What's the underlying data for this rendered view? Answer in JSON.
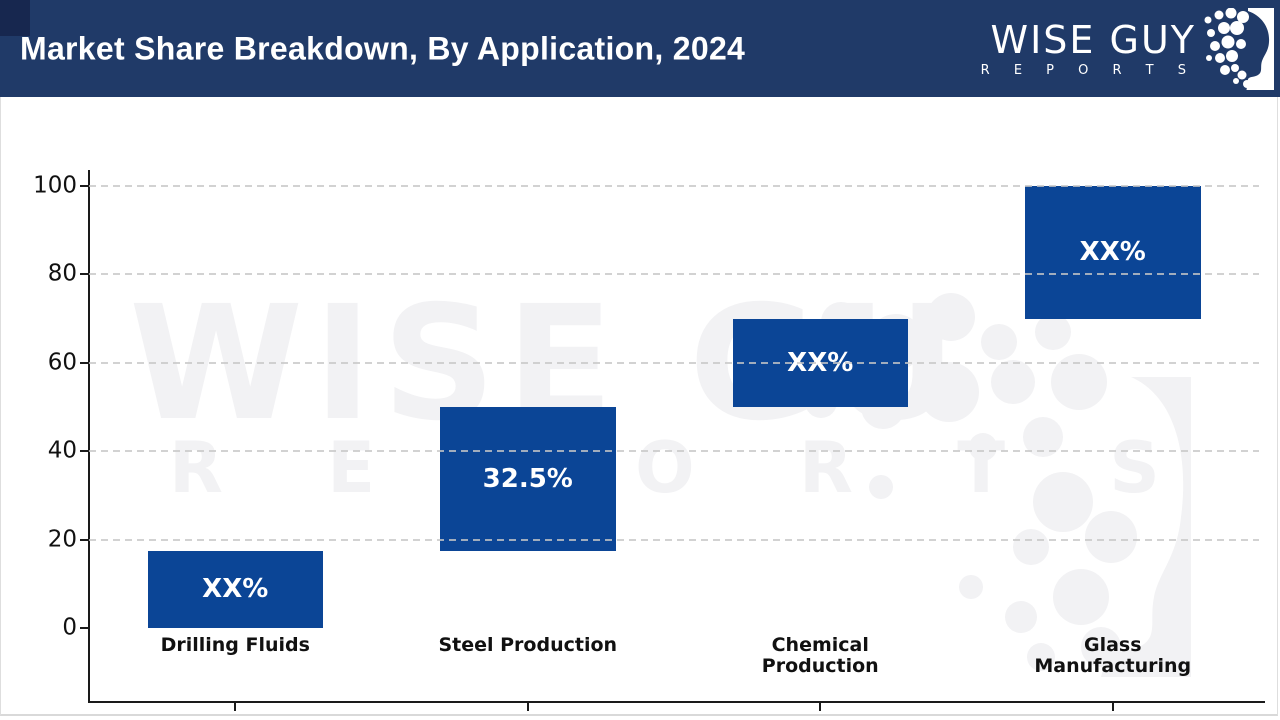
{
  "header": {
    "title": "Market Share Breakdown, By Application, 2024",
    "bg_color": "#203a68",
    "logo": {
      "line1": "WISE GUY",
      "line2": "R E P O R T S"
    }
  },
  "watermark": {
    "line1": "WISE GU",
    "line2": "R E P O R T S"
  },
  "chart_data": {
    "type": "bar",
    "subtype": "waterfall-floating-bars",
    "title": "Market Share Breakdown, By Application, 2024",
    "categories": [
      "Drilling Fluids",
      "Steel Production",
      "Chemical Production",
      "Glass Manufacturing"
    ],
    "categories_lines": [
      [
        "Drilling Fluids"
      ],
      [
        "Steel Production"
      ],
      [
        "Chemical",
        "Production"
      ],
      [
        "Glass",
        "Manufacturing"
      ]
    ],
    "series": [
      {
        "name": "Market Share (%)",
        "segments": [
          {
            "category": "Drilling Fluids",
            "start": 0,
            "end": 17.5,
            "label": "XX%"
          },
          {
            "category": "Steel Production",
            "start": 17.5,
            "end": 50,
            "label": "32.5%"
          },
          {
            "category": "Chemical Production",
            "start": 50,
            "end": 70,
            "label": "XX%"
          },
          {
            "category": "Glass Manufacturing",
            "start": 70,
            "end": 100,
            "label": "XX%"
          }
        ]
      }
    ],
    "xlabel": "",
    "ylabel": "",
    "ylim": [
      0,
      100
    ],
    "yticks": [
      0,
      20,
      40,
      60,
      80,
      100
    ],
    "grid": "horizontal-dashed",
    "legend": "none",
    "bar_color": "#0b4596",
    "bar_label_color": "#ffffff",
    "axis_color": "#1a1a1a"
  }
}
